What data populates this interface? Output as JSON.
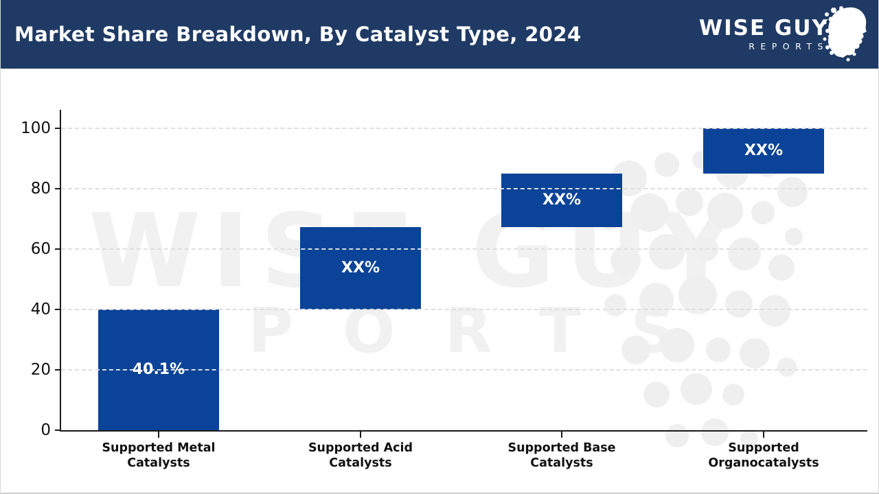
{
  "header": {
    "title": "Market Share Breakdown, By Catalyst Type, 2024",
    "brand": {
      "line1": "WISE GUY",
      "line2": "REPORTS"
    }
  },
  "watermark": {
    "line1": "WISE GUY",
    "line2": "PORTS"
  },
  "colors": {
    "header_bg": "#1f3a64",
    "bar": "#0a4397",
    "grid": "#dedede",
    "axis": "#1a1a1a",
    "bar_label_text": "#ffffff",
    "watermark": "#f1f1f1"
  },
  "chart_data": {
    "type": "bar",
    "variant": "waterfall-cumulative",
    "title": "Market Share Breakdown, By Catalyst Type, 2024",
    "categories": [
      "Supported Metal Catalysts",
      "Supported Acid Catalysts",
      "Supported Base Catalysts",
      "Supported Organocatalysts"
    ],
    "category_label_lines": [
      [
        "Supported Metal",
        "Catalysts"
      ],
      [
        "Supported Acid",
        "Catalysts"
      ],
      [
        "Supported Base",
        "Catalysts"
      ],
      [
        "Supported",
        "Organocatalysts"
      ]
    ],
    "segments": [
      {
        "category": "Supported Metal Catalysts",
        "start": 0,
        "end": 40.1,
        "label": "40.1%"
      },
      {
        "category": "Supported Acid Catalysts",
        "start": 40.1,
        "end": 67.3,
        "label": "XX%"
      },
      {
        "category": "Supported Base Catalysts",
        "start": 67.3,
        "end": 85.0,
        "label": "XX%"
      },
      {
        "category": "Supported Organocatalysts",
        "start": 85.0,
        "end": 100.0,
        "label": "XX%"
      }
    ],
    "xlabel": "",
    "ylabel": "",
    "ylim": [
      0,
      100
    ],
    "yticks": [
      0,
      20,
      40,
      60,
      80,
      100
    ],
    "grid": "horizontal-dashed",
    "legend": "none"
  }
}
